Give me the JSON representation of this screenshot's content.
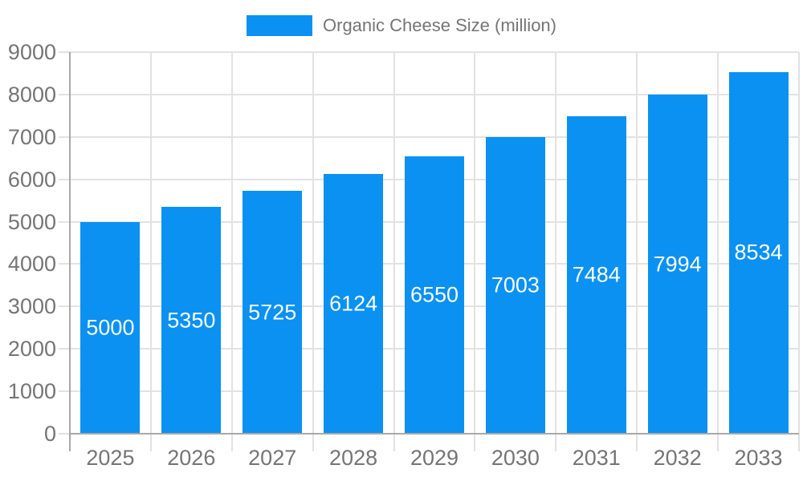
{
  "legend": {
    "label": "Organic Cheese Size (million)",
    "swatch_color": "#0a91f2",
    "position": "top-center"
  },
  "chart_data": {
    "type": "bar",
    "title": "Organic Cheese Size (million)",
    "categories": [
      "2025",
      "2026",
      "2027",
      "2028",
      "2029",
      "2030",
      "2031",
      "2032",
      "2033"
    ],
    "values": [
      5000,
      5350,
      5725,
      6124,
      6550,
      7003,
      7484,
      7994,
      8534
    ],
    "xlabel": "",
    "ylabel": "",
    "ylim": [
      0,
      9000
    ],
    "ytick_step": 1000,
    "ytick_labels": [
      "0",
      "1000",
      "2000",
      "3000",
      "4000",
      "5000",
      "6000",
      "7000",
      "8000",
      "9000"
    ],
    "grid": true,
    "legend_position": "top",
    "bar_color": "#0a91f2",
    "value_labels_inside_bars": true,
    "value_label_color": "#ffffff"
  },
  "colors": {
    "background": "#ffffff",
    "bar": "#0a91f2",
    "grid": "#e2e2e2",
    "axis": "#a8a8a8",
    "text": "#757575",
    "value_label": "#ffffff"
  }
}
